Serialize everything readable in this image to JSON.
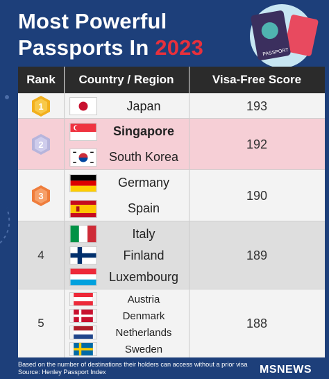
{
  "title": {
    "line1": "Most Powerful",
    "line2_prefix": "Passports In ",
    "year": "2023"
  },
  "passport_art": {
    "cover_text": "PASSPORT"
  },
  "headers": {
    "rank": "Rank",
    "country": "Country / Region",
    "score": "Visa-Free Score"
  },
  "groups": [
    {
      "rank": "1",
      "rank_style": "gold-medal",
      "score": "193",
      "countries": [
        {
          "name": "Japan",
          "flag": "japan-flag"
        }
      ]
    },
    {
      "rank": "2",
      "rank_style": "silver-medal",
      "score": "192",
      "countries": [
        {
          "name": "Singapore",
          "flag": "singapore-flag"
        },
        {
          "name": "South Korea",
          "flag": "south-korea-flag"
        }
      ]
    },
    {
      "rank": "3",
      "rank_style": "bronze-medal",
      "score": "190",
      "countries": [
        {
          "name": "Germany",
          "flag": "germany-flag"
        },
        {
          "name": "Spain",
          "flag": "spain-flag"
        }
      ]
    },
    {
      "rank": "4",
      "score": "189",
      "countries": [
        {
          "name": "Italy",
          "flag": "italy-flag"
        },
        {
          "name": "Finland",
          "flag": "finland-flag"
        },
        {
          "name": "Luxembourg",
          "flag": "luxembourg-flag"
        }
      ]
    },
    {
      "rank": "5",
      "score": "188",
      "countries": [
        {
          "name": "Austria",
          "flag": "austria-flag"
        },
        {
          "name": "Denmark",
          "flag": "denmark-flag"
        },
        {
          "name": "Netherlands",
          "flag": "netherlands-flag"
        },
        {
          "name": "Sweden",
          "flag": "sweden-flag"
        }
      ]
    }
  ],
  "footnote": {
    "line1": "Based on the number of destinations their holders can access without a prior visa",
    "line2": "Source:  Henley Passport Index"
  },
  "logo": "MSNEWS",
  "colors": {
    "background": "#1d3f7a",
    "accent_red": "#e8303c",
    "header_bg": "#2b2b2b",
    "row_pink": "#f6cfd6",
    "row_grey": "#dedede",
    "row_white": "#f3f3f3",
    "gold": "#f2b01e",
    "silver": "#b7b5dc",
    "bronze": "#ef7d3c"
  }
}
